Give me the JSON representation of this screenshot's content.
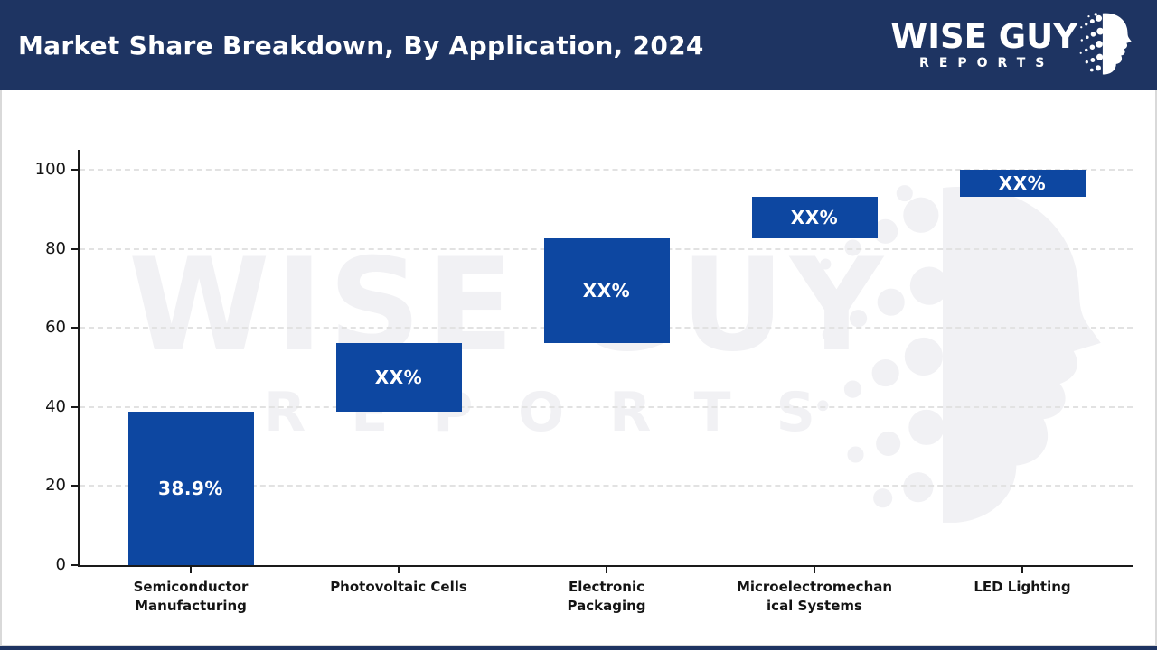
{
  "header": {
    "title": "Market Share Breakdown, By Application, 2024",
    "logo": {
      "line1": "WISE GUY",
      "line2": "REPORTS"
    }
  },
  "watermark": {
    "line1": "WISE GUY",
    "line2": "REPORTS"
  },
  "colors": {
    "header_bg": "#1e3462",
    "footer_bg": "#1e3462",
    "bar": "#0d47a1",
    "bar_label": "#ffffff",
    "grid": "#e2e2e2",
    "axis": "#1a1a1a",
    "watermark": "#f1f1f4"
  },
  "chart_data": {
    "type": "bar",
    "subtype": "waterfall",
    "title": "Market Share Breakdown, By Application, 2024",
    "xlabel": "",
    "ylabel": "",
    "ylim": [
      0,
      100
    ],
    "yticks": [
      0,
      20,
      40,
      60,
      80,
      100
    ],
    "grid": "horizontal-dashed",
    "legend": "none",
    "bar_color": "#0d47a1",
    "categories": [
      "Semiconductor Manufacturing",
      "Photovoltaic Cells",
      "Electronic Packaging",
      "Microelectromechanical Systems",
      "LED Lighting"
    ],
    "category_label_lines": [
      [
        "Semiconductor",
        "Manufacturing"
      ],
      [
        "Photovoltaic Cells"
      ],
      [
        "Electronic",
        "Packaging"
      ],
      [
        "Microelectromechan",
        "ical Systems"
      ],
      [
        "LED Lighting"
      ]
    ],
    "series": [
      {
        "name": "Market Share",
        "segments": [
          {
            "category": "Semiconductor Manufacturing",
            "start": 0,
            "end": 38.9,
            "label": "38.9%"
          },
          {
            "category": "Photovoltaic Cells",
            "start": 38.9,
            "end": 56.2,
            "label": "XX%"
          },
          {
            "category": "Electronic Packaging",
            "start": 56.2,
            "end": 82.6,
            "label": "XX%"
          },
          {
            "category": "Microelectromechanical Systems",
            "start": 82.6,
            "end": 93.2,
            "label": "XX%"
          },
          {
            "category": "LED Lighting",
            "start": 93.2,
            "end": 100,
            "label": "XX%"
          }
        ]
      }
    ]
  }
}
